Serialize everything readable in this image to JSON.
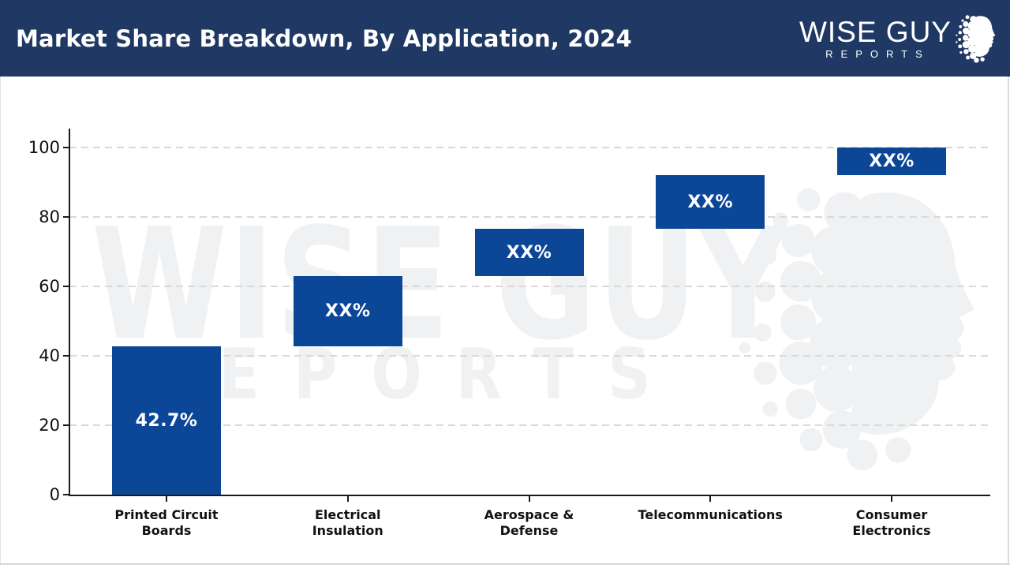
{
  "header": {
    "title": "Market Share Breakdown, By Application, 2024",
    "brand": {
      "name": "WISE GUY",
      "subtitle": "REPORTS"
    }
  },
  "watermark": {
    "line1": "WISE GUY",
    "line2": "REPORTS"
  },
  "colors": {
    "header_bg": "#1f3864",
    "bar": "#0b4697",
    "bar_label": "#ffffff",
    "grid": "#d9d9d9",
    "axis": "#1a1a1a",
    "watermark": "#f0f1f3"
  },
  "chart_data": {
    "type": "bar",
    "variant": "waterfall-stacked-percentage",
    "title": "Market Share Breakdown, By Application, 2024",
    "categories": [
      "Printed Circuit Boards",
      "Electrical Insulation",
      "Aerospace & Defense",
      "Telecommunications",
      "Consumer Electronics"
    ],
    "category_tick_labels": [
      "Printed Circuit\nBoards",
      "Electrical\nInsulation",
      "Aerospace &\nDefense",
      "Telecommunications",
      "Consumer\nElectronics"
    ],
    "segments": [
      {
        "category": "Printed Circuit Boards",
        "start": 0,
        "end": 42.7,
        "label": "42.7%"
      },
      {
        "category": "Electrical Insulation",
        "start": 42.7,
        "end": 63.0,
        "label": "XX%"
      },
      {
        "category": "Aerospace & Defense",
        "start": 63.0,
        "end": 76.5,
        "label": "XX%"
      },
      {
        "category": "Telecommunications",
        "start": 76.5,
        "end": 92.1,
        "label": "XX%"
      },
      {
        "category": "Consumer Electronics",
        "start": 92.1,
        "end": 100,
        "label": "XX%"
      }
    ],
    "segment_sizes": [
      42.7,
      20.3,
      13.5,
      15.6,
      7.9
    ],
    "xlabel": "",
    "ylabel": "",
    "ylim": [
      0,
      105
    ],
    "yticks": [
      0,
      20,
      40,
      60,
      80,
      100
    ],
    "grid": "horizontal-dashed",
    "legend": "none"
  }
}
